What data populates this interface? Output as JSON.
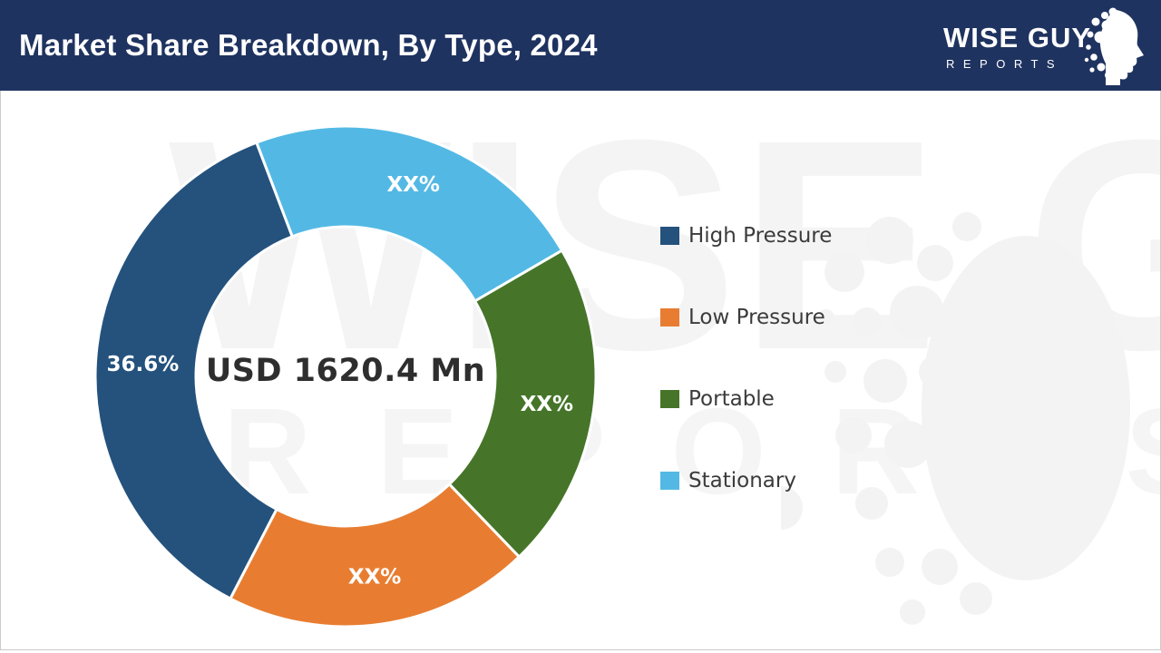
{
  "header": {
    "title": "Market Share Breakdown, By Type, 2024",
    "background_color": "#1f3360",
    "logo": {
      "line1": "WISE GUY",
      "line2": "REPORTS"
    }
  },
  "watermark": {
    "line1": "WISE GUY",
    "line2": "REPORTS"
  },
  "chart_data": {
    "type": "donut",
    "title": "Market Share Breakdown, By Type, 2024",
    "center_label": "USD 1620.4 Mn",
    "start_angle_deg": 207.4,
    "legend_position": "right",
    "segments": [
      {
        "name": "High Pressure",
        "label": "36.6%",
        "value_pct": 36.6,
        "color": "#24527d"
      },
      {
        "name": "Stationary",
        "label": "XX%",
        "value_pct": 22.4,
        "color": "#53b9e4"
      },
      {
        "name": "Portable",
        "label": "XX%",
        "value_pct": 21.2,
        "color": "#467529"
      },
      {
        "name": "Low Pressure",
        "label": "XX%",
        "value_pct": 19.8,
        "color": "#e87d31"
      }
    ],
    "legend_items": [
      {
        "label": "High Pressure",
        "color": "#24527d"
      },
      {
        "label": "Low Pressure",
        "color": "#e87d31"
      },
      {
        "label": "Portable",
        "color": "#467529"
      },
      {
        "label": "Stationary",
        "color": "#53b9e4"
      }
    ]
  }
}
